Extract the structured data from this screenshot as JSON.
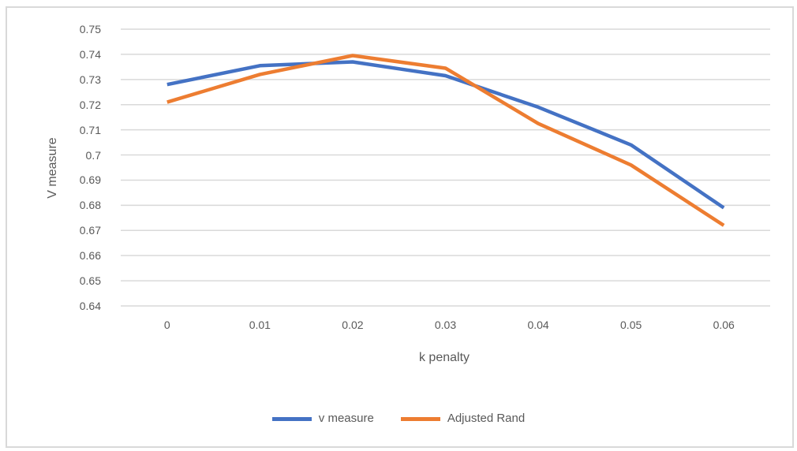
{
  "chart_data": {
    "type": "line",
    "title": "",
    "xlabel": "k penalty",
    "ylabel": "V measure",
    "x_categories": [
      "0",
      "0.01",
      "0.02",
      "0.03",
      "0.04",
      "0.05",
      "0.06"
    ],
    "x_values": [
      0,
      0.01,
      0.02,
      0.03,
      0.04,
      0.05,
      0.06
    ],
    "series": [
      {
        "name": "v measure",
        "color": "#4472C4",
        "values": [
          0.728,
          0.7355,
          0.737,
          0.7315,
          0.719,
          0.704,
          0.679
        ]
      },
      {
        "name": "Adjusted Rand",
        "color": "#ED7D31",
        "values": [
          0.721,
          0.732,
          0.7395,
          0.7345,
          0.7125,
          0.696,
          0.672
        ]
      }
    ],
    "ylim": [
      0.64,
      0.75
    ],
    "y_tick_step": 0.01,
    "y_tick_labels": [
      "0.75",
      "0.74",
      "0.73",
      "0.72",
      "0.71",
      "0.7",
      "0.69",
      "0.68",
      "0.67",
      "0.66",
      "0.65",
      "0.64"
    ],
    "grid": "horizontal",
    "legend_position": "bottom",
    "colors": {
      "gridline": "#D9D9D9",
      "text": "#595959",
      "frame_border": "#D9D9D9",
      "background": "#FFFFFF"
    }
  }
}
